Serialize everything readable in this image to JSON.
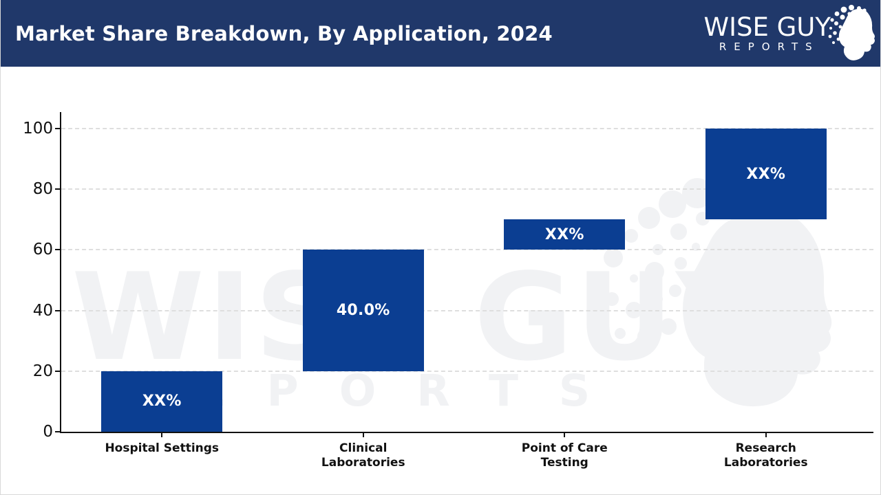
{
  "header": {
    "title": "Market Share Breakdown, By Application, 2024",
    "logo": {
      "name": "WISE GUY",
      "sub": "REPORTS"
    }
  },
  "watermark": {
    "line1": "WISE GUY",
    "line2": "REPORTS"
  },
  "colors": {
    "header_bg": "#20386a",
    "bar": "#0b3e92",
    "bar_label": "#ffffff",
    "grid": "#dedede",
    "axis": "#111111",
    "watermark": "#f1f2f4"
  },
  "chart_data": {
    "type": "bar",
    "subtype": "waterfall",
    "title": "Market Share Breakdown, By Application, 2024",
    "categories": [
      "Hospital Settings",
      "Clinical\nLaboratories",
      "Point of Care\nTesting",
      "Research\nLaboratories"
    ],
    "segments": [
      {
        "category": "Hospital Settings",
        "start": 0,
        "end": 20,
        "label": "XX%"
      },
      {
        "category": "Clinical Laboratories",
        "start": 20,
        "end": 60,
        "label": "40.0%"
      },
      {
        "category": "Point of Care Testing",
        "start": 60,
        "end": 70,
        "label": "XX%"
      },
      {
        "category": "Research Laboratories",
        "start": 70,
        "end": 100,
        "label": "XX%"
      }
    ],
    "yticks": [
      0,
      20,
      40,
      60,
      80,
      100
    ],
    "ylim": [
      0,
      100
    ],
    "xlabel": "",
    "ylabel": "",
    "grid": "horizontal-dashed",
    "legend": "none",
    "bar_color": "#0b3e92",
    "label_color": "#ffffff"
  }
}
